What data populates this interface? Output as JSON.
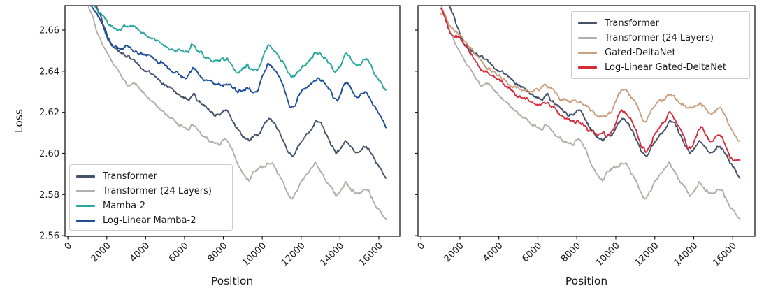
{
  "figure": {
    "background": "#ffffff",
    "text_color": "#1a1a1a",
    "spine_color": "#1a1a1a"
  },
  "chart_data": [
    {
      "type": "line",
      "panel": "left",
      "title": "",
      "xlabel": "Position",
      "ylabel": "Loss",
      "xlim": [
        -150,
        17080
      ],
      "ylim": [
        2.5597,
        2.6719
      ],
      "xticks": [
        0,
        2000,
        4000,
        6000,
        8000,
        10000,
        12000,
        14000,
        16000
      ],
      "yticks": [
        2.56,
        2.58,
        2.6,
        2.62,
        2.64,
        2.66
      ],
      "show_ytick_labels": true,
      "grid": false,
      "legend_position": "lower left",
      "x": [
        1024,
        1536,
        2048,
        2560,
        3072,
        3584,
        4096,
        4608,
        5120,
        5632,
        6144,
        6400,
        6656,
        7168,
        7680,
        8192,
        8704,
        9216,
        9728,
        10240,
        10496,
        11008,
        11520,
        12032,
        12544,
        12800,
        13312,
        13824,
        14336,
        14848,
        15360,
        15872,
        16384
      ],
      "series": [
        {
          "name": "Transformer",
          "color": "#44526b",
          "y": [
            2.676,
            2.67,
            2.657,
            2.6505,
            2.6468,
            2.6435,
            2.64,
            2.636,
            2.6325,
            2.6285,
            2.6258,
            2.628,
            2.6262,
            2.6212,
            2.6182,
            2.6198,
            2.612,
            2.6075,
            2.609,
            2.616,
            2.6158,
            2.608,
            2.5992,
            2.606,
            2.612,
            2.6158,
            2.609,
            2.6005,
            2.6062,
            2.6002,
            2.603,
            2.5955,
            2.5888
          ]
        },
        {
          "name": "Transformer (24 Layers)",
          "color": "#b3aeac",
          "y": [
            2.673,
            2.658,
            2.648,
            2.6405,
            2.6335,
            2.6325,
            2.627,
            2.623,
            2.619,
            2.6145,
            2.6118,
            2.6135,
            2.6115,
            2.6068,
            2.6045,
            2.6062,
            2.596,
            2.5875,
            2.592,
            2.595,
            2.5948,
            2.5865,
            2.5785,
            2.5868,
            2.592,
            2.5942,
            2.5868,
            2.58,
            2.5858,
            2.58,
            2.5822,
            2.575,
            2.5685
          ]
        },
        {
          "name": "Mamba-2",
          "color": "#2aa79f",
          "y": [
            2.678,
            2.67,
            2.6635,
            2.66,
            2.6618,
            2.6605,
            2.6572,
            2.6545,
            2.6515,
            2.6498,
            2.649,
            2.6525,
            2.6505,
            2.6465,
            2.6448,
            2.6462,
            2.6402,
            2.6425,
            2.6408,
            2.652,
            2.6518,
            2.6445,
            2.6372,
            2.642,
            2.6465,
            2.6495,
            2.646,
            2.64,
            2.6478,
            2.642,
            2.6455,
            2.638,
            2.63
          ]
        },
        {
          "name": "Log-Linear Mamba-2",
          "color": "#1f4e96",
          "y": [
            2.674,
            2.668,
            2.6565,
            2.6515,
            2.6515,
            2.6495,
            2.6485,
            2.6455,
            2.6418,
            2.639,
            2.6372,
            2.6412,
            2.639,
            2.635,
            2.633,
            2.6342,
            2.63,
            2.6318,
            2.63,
            2.6425,
            2.642,
            2.634,
            2.6225,
            2.63,
            2.634,
            2.6358,
            2.633,
            2.6262,
            2.6345,
            2.628,
            2.6295,
            2.622,
            2.6135
          ]
        }
      ]
    },
    {
      "type": "line",
      "panel": "right",
      "title": "",
      "xlabel": "Position",
      "ylabel": "",
      "xlim": [
        -150,
        17140
      ],
      "ylim": [
        2.5597,
        2.6719
      ],
      "xticks": [
        0,
        2000,
        4000,
        6000,
        8000,
        10000,
        12000,
        14000,
        16000
      ],
      "yticks": [
        2.56,
        2.58,
        2.6,
        2.62,
        2.64,
        2.66
      ],
      "show_ytick_labels": false,
      "grid": false,
      "legend_position": "upper right",
      "x": [
        1024,
        1536,
        2048,
        2560,
        3072,
        3584,
        4096,
        4608,
        5120,
        5632,
        6144,
        6400,
        6656,
        7168,
        7680,
        8192,
        8704,
        9216,
        9728,
        10240,
        10496,
        11008,
        11520,
        12032,
        12544,
        12800,
        13312,
        13824,
        14336,
        14848,
        15360,
        15872,
        16384
      ],
      "series": [
        {
          "name": "Transformer",
          "color": "#44526b",
          "y": [
            2.676,
            2.67,
            2.657,
            2.6505,
            2.6468,
            2.6435,
            2.64,
            2.636,
            2.6325,
            2.6285,
            2.6258,
            2.628,
            2.6262,
            2.6212,
            2.6182,
            2.6198,
            2.612,
            2.6075,
            2.609,
            2.616,
            2.6158,
            2.608,
            2.5992,
            2.606,
            2.612,
            2.6158,
            2.609,
            2.6005,
            2.6062,
            2.6002,
            2.603,
            2.5955,
            2.5888
          ]
        },
        {
          "name": "Transformer (24 Layers)",
          "color": "#b3aeac",
          "y": [
            2.673,
            2.658,
            2.648,
            2.6405,
            2.6335,
            2.6325,
            2.627,
            2.623,
            2.619,
            2.6145,
            2.6118,
            2.6135,
            2.6115,
            2.6068,
            2.6045,
            2.6062,
            2.596,
            2.5875,
            2.592,
            2.595,
            2.5948,
            2.5865,
            2.5785,
            2.5868,
            2.592,
            2.5942,
            2.5868,
            2.58,
            2.5858,
            2.58,
            2.5822,
            2.575,
            2.5685
          ]
        },
        {
          "name": "Gated-DeltaNet",
          "color": "#c99f7d",
          "y": [
            2.669,
            2.6612,
            2.6576,
            2.651,
            2.6447,
            2.6406,
            2.637,
            2.6332,
            2.6312,
            2.63,
            2.6312,
            2.633,
            2.6318,
            2.627,
            2.6252,
            2.6248,
            2.6205,
            2.618,
            2.6195,
            2.63,
            2.6308,
            2.624,
            2.6162,
            2.624,
            2.627,
            2.6292,
            2.624,
            2.6215,
            2.624,
            2.619,
            2.6218,
            2.613,
            2.6058
          ]
        },
        {
          "name": "Log-Linear Gated-DeltaNet",
          "color": "#d62b3a",
          "y": [
            2.67,
            2.658,
            2.656,
            2.648,
            2.6416,
            2.638,
            2.6348,
            2.6304,
            2.627,
            2.6252,
            2.6238,
            2.6255,
            2.624,
            2.6195,
            2.616,
            2.615,
            2.611,
            2.6095,
            2.61,
            2.6195,
            2.62,
            2.612,
            2.601,
            2.609,
            2.616,
            2.62,
            2.612,
            2.602,
            2.6125,
            2.606,
            2.609,
            2.599,
            2.5962
          ]
        }
      ]
    }
  ]
}
